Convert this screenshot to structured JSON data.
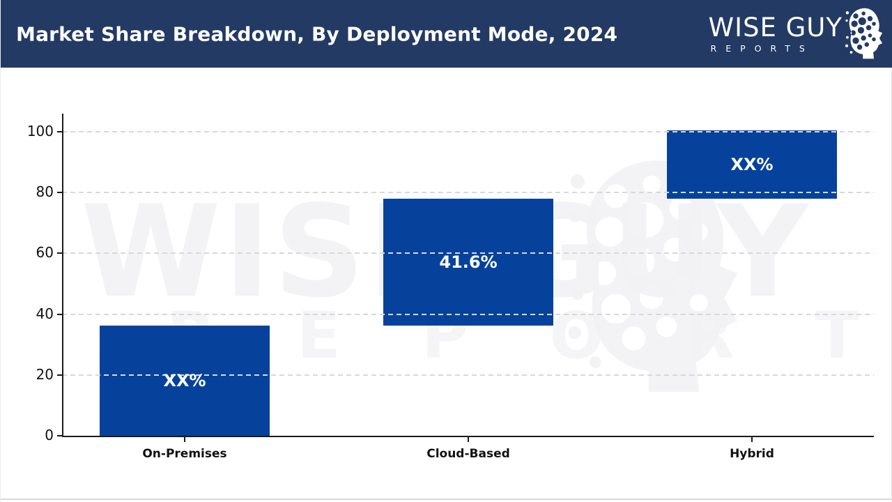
{
  "header": {
    "title": "Market Share Breakdown, By Deployment Mode, 2024",
    "background_color": "#223a64",
    "logo": {
      "line1": "WISE GUY",
      "line2": "REPORTS",
      "icon": "wiseguy-head-icon",
      "color": "#ffffff"
    }
  },
  "watermark": {
    "line1": "WISE GUY",
    "line2": "R E P O R T S",
    "color": "#f3f3f5"
  },
  "chart_data": {
    "type": "bar",
    "subtype": "waterfall",
    "title": "Market Share Breakdown, By Deployment Mode, 2024",
    "categories": [
      "On-Premises",
      "Cloud-Based",
      "Hybrid"
    ],
    "bars": [
      {
        "category": "On-Premises",
        "start": 0,
        "end": 36.3,
        "label": "XX%"
      },
      {
        "category": "Cloud-Based",
        "start": 36.3,
        "end": 77.9,
        "label": "41.6%"
      },
      {
        "category": "Hybrid",
        "start": 77.9,
        "end": 100.4,
        "label": "XX%"
      }
    ],
    "yticks": [
      0,
      20,
      40,
      60,
      80,
      100
    ],
    "ylim": [
      0,
      106
    ],
    "xlabel": "",
    "ylabel": "",
    "grid": "horizontal-dashed-drawn-over-bars",
    "gridline_color": "#d8d8d8",
    "bar_color": "#06429c",
    "bar_label_color": "#ffffff",
    "axis_color": "#1a1a1a",
    "legend": null
  }
}
